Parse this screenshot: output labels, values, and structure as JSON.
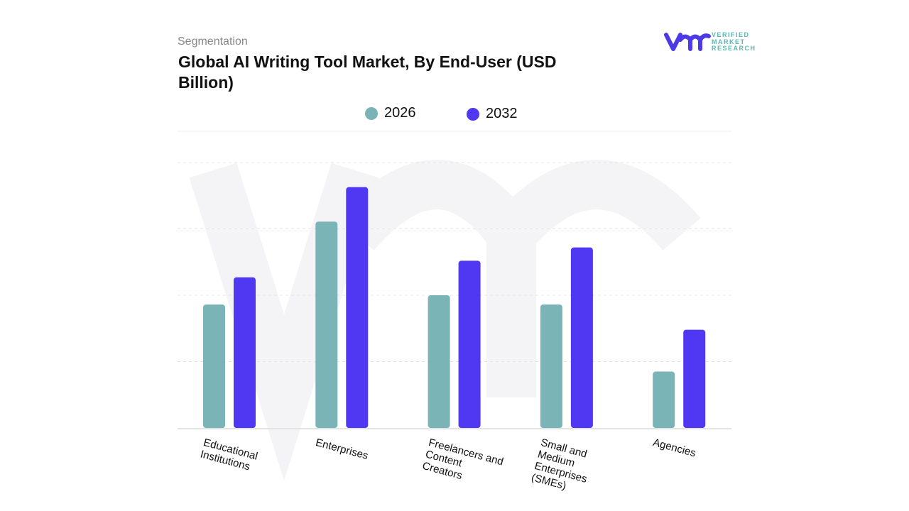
{
  "header": {
    "section": "Segmentation",
    "title": "Global AI Writing Tool Market, By End-User (USD Billion)"
  },
  "logo": {
    "lines": [
      "VERIFIED",
      "MARKET",
      "RESEARCH"
    ]
  },
  "chart_data": {
    "type": "bar",
    "title": "Global AI Writing Tool Market, By End-User (USD Billion)",
    "categories": [
      "Educational Institutions",
      "Enterprises",
      "Freelancers and Content Creators",
      "Small and Medium Enterprises (SMEs)",
      "Agencies"
    ],
    "category_lines": [
      [
        "Educational",
        "Institutions"
      ],
      [
        "Enterprises"
      ],
      [
        "Freelancers and",
        "Content",
        "Creators"
      ],
      [
        "Small and",
        "Medium",
        "Enterprises",
        "(SMEs)"
      ],
      [
        "Agencies"
      ]
    ],
    "series": [
      {
        "name": "2026",
        "color": "#7bb4b6",
        "values": [
          1.86,
          3.11,
          2.0,
          1.86,
          0.85
        ]
      },
      {
        "name": "2032",
        "color": "#5037f2",
        "values": [
          2.27,
          3.63,
          2.52,
          2.72,
          1.48
        ]
      }
    ],
    "ylim": [
      0,
      4
    ],
    "grid": true,
    "legend": "top-center",
    "xlabel": "",
    "ylabel": ""
  }
}
